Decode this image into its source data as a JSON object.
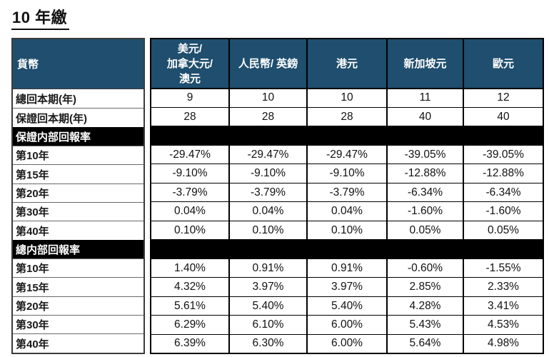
{
  "title": "10 年繳",
  "colors": {
    "header_bg": "#1f4e6e",
    "header_text": "#ffffff",
    "section_bg": "#000000",
    "section_text": "#ffffff",
    "border": "#000000"
  },
  "table": {
    "header": {
      "label": "貨幣",
      "columns": [
        "美元/\n加拿大元/\n澳元",
        "人民幣/ 英鎊",
        "港元",
        "新加坡元",
        "歐元"
      ]
    },
    "rows": [
      {
        "type": "data",
        "label": "總回本期(年)",
        "values": [
          "9",
          "10",
          "10",
          "11",
          "12"
        ]
      },
      {
        "type": "data",
        "label": "保證回本期(年)",
        "values": [
          "28",
          "28",
          "28",
          "40",
          "40"
        ]
      },
      {
        "type": "section",
        "label": "保證内部回報率"
      },
      {
        "type": "data",
        "label": "第10年",
        "values": [
          "-29.47%",
          "-29.47%",
          "-29.47%",
          "-39.05%",
          "-39.05%"
        ]
      },
      {
        "type": "data",
        "label": "第15年",
        "values": [
          "-9.10%",
          "-9.10%",
          "-9.10%",
          "-12.88%",
          "-12.88%"
        ]
      },
      {
        "type": "data",
        "label": "第20年",
        "values": [
          "-3.79%",
          "-3.79%",
          "-3.79%",
          "-6.34%",
          "-6.34%"
        ]
      },
      {
        "type": "data",
        "label": "第30年",
        "values": [
          "0.04%",
          "0.04%",
          "0.04%",
          "-1.60%",
          "-1.60%"
        ]
      },
      {
        "type": "data",
        "label": "第40年",
        "values": [
          "0.10%",
          "0.10%",
          "0.10%",
          "0.05%",
          "0.05%"
        ]
      },
      {
        "type": "section",
        "label": "總内部回報率"
      },
      {
        "type": "data",
        "label": "第10年",
        "values": [
          "1.40%",
          "0.91%",
          "0.91%",
          "-0.60%",
          "-1.55%"
        ]
      },
      {
        "type": "data",
        "label": "第15年",
        "values": [
          "4.32%",
          "3.97%",
          "3.97%",
          "2.85%",
          "2.33%"
        ]
      },
      {
        "type": "data",
        "label": "第20年",
        "values": [
          "5.61%",
          "5.40%",
          "5.40%",
          "4.28%",
          "3.41%"
        ]
      },
      {
        "type": "data",
        "label": "第30年",
        "values": [
          "6.29%",
          "6.10%",
          "6.00%",
          "5.43%",
          "4.53%"
        ]
      },
      {
        "type": "data",
        "label": "第40年",
        "values": [
          "6.39%",
          "6.30%",
          "6.00%",
          "5.64%",
          "4.98%"
        ]
      }
    ]
  }
}
